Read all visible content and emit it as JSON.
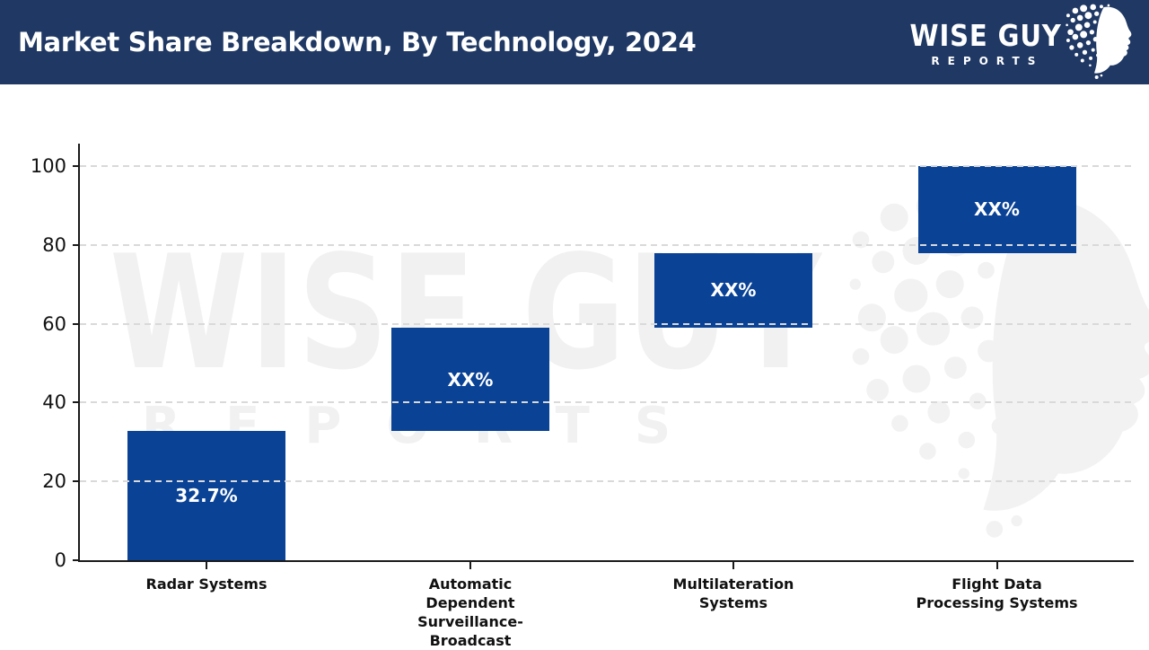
{
  "header": {
    "title": "Market Share Breakdown, By Technology, 2024",
    "logo": {
      "name": "WISE GUY",
      "tagline": "REPORTS"
    }
  },
  "watermark": {
    "name": "WISE GUY",
    "tagline": "REPORTS"
  },
  "chart_data": {
    "type": "bar",
    "subtype": "waterfall",
    "title": "Market Share Breakdown, By Technology, 2024",
    "categories": [
      [
        "Radar Systems"
      ],
      [
        "Automatic",
        "Dependent",
        "Surveillance-",
        "Broadcast"
      ],
      [
        "Multilateration",
        "Systems"
      ],
      [
        "Flight Data",
        "Processing Systems"
      ]
    ],
    "segments": [
      {
        "category": "Radar Systems",
        "start": 0,
        "end": 32.7,
        "label": "32.7%"
      },
      {
        "category": "Automatic Dependent Surveillance-Broadcast",
        "start": 32.7,
        "end": 59,
        "label": "XX%"
      },
      {
        "category": "Multilateration Systems",
        "start": 59,
        "end": 78,
        "label": "XX%"
      },
      {
        "category": "Flight Data Processing Systems",
        "start": 78,
        "end": 100,
        "label": "XX%"
      }
    ],
    "y_ticks": [
      0,
      20,
      40,
      60,
      80,
      100
    ],
    "ylim": [
      0,
      105
    ],
    "xlabel": "",
    "ylabel": "",
    "grid": "horizontal-dashed",
    "legend": "none",
    "bar_color": "#0a4296",
    "value_label_color": "#ffffff"
  },
  "colors": {
    "header_bg": "#1f3864",
    "bar": "#0a4296",
    "watermark": "#f1f1f1",
    "grid": "#d9d9d9",
    "axis": "#1a1a1a"
  }
}
